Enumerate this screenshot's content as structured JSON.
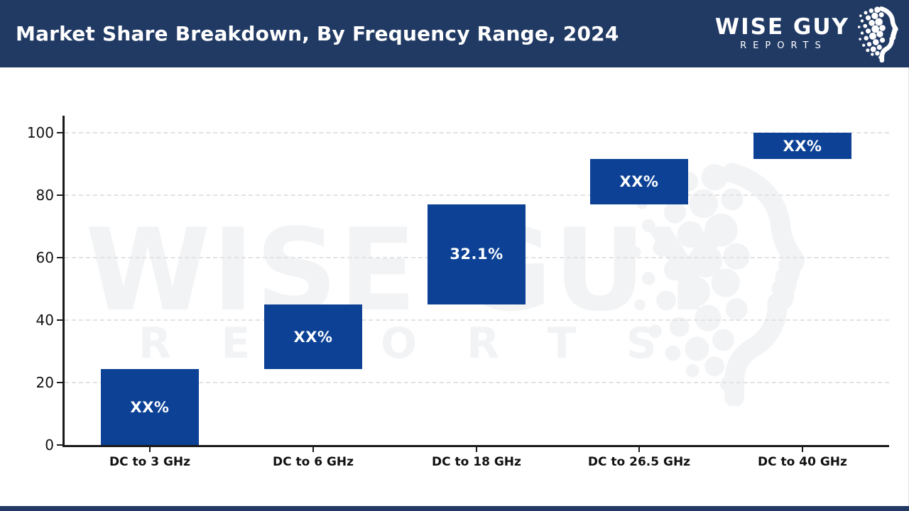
{
  "header": {
    "title": "Market Share Breakdown, By Frequency Range, 2024",
    "logo": {
      "name": "Wise Guy Reports",
      "line1": "WISE GUY",
      "line2": "REPORTS"
    }
  },
  "watermark": {
    "line1": "WISE GUY",
    "line2": "REPORTS"
  },
  "colors": {
    "header_bg": "#213a64",
    "footer_bg": "#213a64",
    "bar": "#0c4195",
    "bar_label": "#ffffff",
    "axis": "#1a1a1a",
    "grid": "#e2e2e2",
    "watermark": "#f2f3f5"
  },
  "chart_data": {
    "type": "bar",
    "subtype": "floating-waterfall",
    "title": "Market Share Breakdown, By Frequency Range, 2024",
    "categories": [
      "DC to 3 GHz",
      "DC to 6 GHz",
      "DC to 18 GHz",
      "DC to 26.5 GHz",
      "DC to 40 GHz"
    ],
    "series": [
      {
        "name": "Market share (%)",
        "segments": [
          {
            "category": "DC to 3 GHz",
            "start": 0,
            "end": 24.3,
            "label": "XX%"
          },
          {
            "category": "DC to 6 GHz",
            "start": 24.3,
            "end": 45.0,
            "label": "XX%"
          },
          {
            "category": "DC to 18 GHz",
            "start": 45.0,
            "end": 77.1,
            "value": 32.1,
            "label": "32.1%"
          },
          {
            "category": "DC to 26.5 GHz",
            "start": 77.1,
            "end": 91.5,
            "label": "XX%"
          },
          {
            "category": "DC to 40 GHz",
            "start": 91.5,
            "end": 100,
            "label": "XX%"
          }
        ]
      }
    ],
    "xlabel": "",
    "ylabel": "",
    "ylim": [
      0,
      100
    ],
    "yticks": [
      0,
      20,
      40,
      60,
      80,
      100
    ],
    "grid": "horizontal-dashed",
    "legend": "none"
  }
}
